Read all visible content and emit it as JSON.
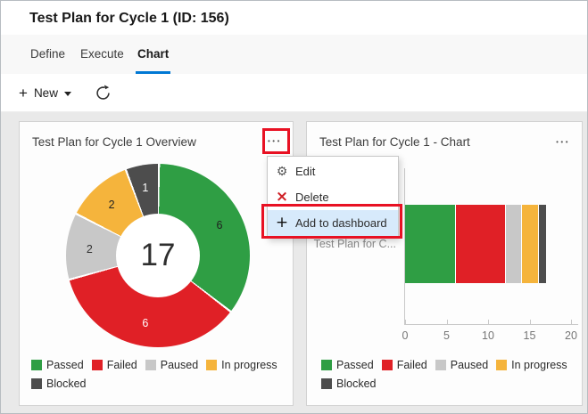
{
  "window": {
    "title": "Test Plan for Cycle 1 (ID: 156)"
  },
  "tabs": [
    {
      "label": "Define"
    },
    {
      "label": "Execute"
    },
    {
      "label": "Chart"
    }
  ],
  "active_tab": "Chart",
  "toolbar": {
    "new_label": "New",
    "plus": "+",
    "refresh_name": "refresh"
  },
  "widgets": [
    {
      "title": "Test Plan for Cycle 1 Overview",
      "menu_button": "•••"
    },
    {
      "title": "Test Plan for Cycle 1 - Chart",
      "menu_button": "•••"
    }
  ],
  "context_menu": {
    "items": [
      {
        "label": "Edit",
        "icon": "gear-icon",
        "icon_glyph": "⚙"
      },
      {
        "label": "Delete",
        "icon": "delete-x-icon",
        "icon_glyph": "×"
      },
      {
        "label": "Add to dashboard",
        "icon": "plus-icon",
        "icon_glyph": "+",
        "highlighted": true
      }
    ]
  },
  "colors": {
    "accent": "#0078d4",
    "annotation": "#e81123",
    "menu_highlight": "#d7eafb"
  },
  "chart_data": [
    {
      "type": "donut",
      "title": "Test Plan for Cycle 1 Overview",
      "center_label": "17",
      "total": 17,
      "legend_position": "bottom",
      "series": [
        {
          "name": "Passed",
          "value": 6,
          "color": "#2f9e44",
          "label_color": "#1e1e1e"
        },
        {
          "name": "Failed",
          "value": 6,
          "color": "#e02026",
          "label_color": "#ffffff"
        },
        {
          "name": "Paused",
          "value": 2,
          "color": "#c8c8c8",
          "label_color": "#333333"
        },
        {
          "name": "In progress",
          "value": 2,
          "color": "#f5b43c",
          "label_color": "#222222"
        },
        {
          "name": "Blocked",
          "value": 1,
          "color": "#4d4d4d",
          "label_color": "#ffffff"
        }
      ]
    },
    {
      "type": "stacked-bar-horizontal",
      "title": "Test Plan for Cycle 1 - Chart",
      "category": "Test Plan for C...",
      "x_ticks": [
        0,
        5,
        10,
        15,
        20
      ],
      "xlim": [
        0,
        20
      ],
      "legend_position": "bottom",
      "series": [
        {
          "name": "Passed",
          "value": 6,
          "color": "#2f9e44"
        },
        {
          "name": "Failed",
          "value": 6,
          "color": "#e02026"
        },
        {
          "name": "Paused",
          "value": 2,
          "color": "#c8c8c8"
        },
        {
          "name": "In progress",
          "value": 2,
          "color": "#f5b43c"
        },
        {
          "name": "Blocked",
          "value": 1,
          "color": "#4d4d4d"
        }
      ]
    }
  ]
}
